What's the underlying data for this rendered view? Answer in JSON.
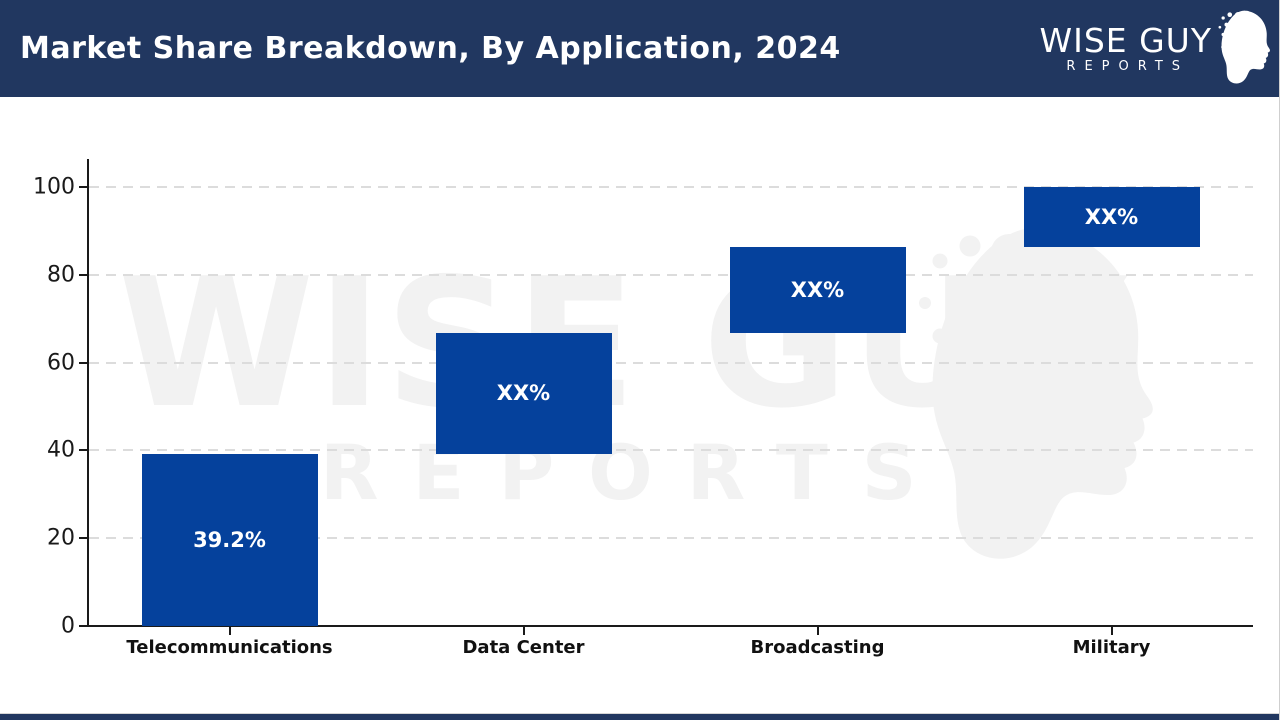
{
  "header": {
    "title": "Market Share Breakdown, By Application, 2024",
    "logo": {
      "line1": "WISE GUY",
      "line2": "REPORTS"
    }
  },
  "watermark": {
    "line1": "WISE GUY",
    "line2": "REPORTS"
  },
  "chart_data": {
    "type": "bar",
    "subtype": "floating-stacked-waterfall",
    "title": "Market Share Breakdown, By Application, 2024",
    "categories": [
      "Telecommunications",
      "Data Center",
      "Broadcasting",
      "Military"
    ],
    "bars": [
      {
        "category": "Telecommunications",
        "start": 0,
        "end": 39.2,
        "label": "39.2%"
      },
      {
        "category": "Data Center",
        "start": 39.2,
        "end": 66.8,
        "label": "XX%"
      },
      {
        "category": "Broadcasting",
        "start": 66.8,
        "end": 86.3,
        "label": "XX%"
      },
      {
        "category": "Military",
        "start": 86.3,
        "end": 100,
        "label": "XX%"
      }
    ],
    "xlabel": "",
    "ylabel": "",
    "ylim": [
      0,
      100
    ],
    "yticks": [
      0,
      20,
      40,
      60,
      80,
      100
    ],
    "grid": "horizontal-dashed",
    "legend": "none",
    "bar_color": "#05419c",
    "bar_label_color": "#ffffff"
  },
  "colors": {
    "header_bg": "#213760",
    "bar": "#05419c",
    "watermark": "#f2f2f2",
    "gridline": "#dcdcdc",
    "axis": "#1a1a1a"
  }
}
